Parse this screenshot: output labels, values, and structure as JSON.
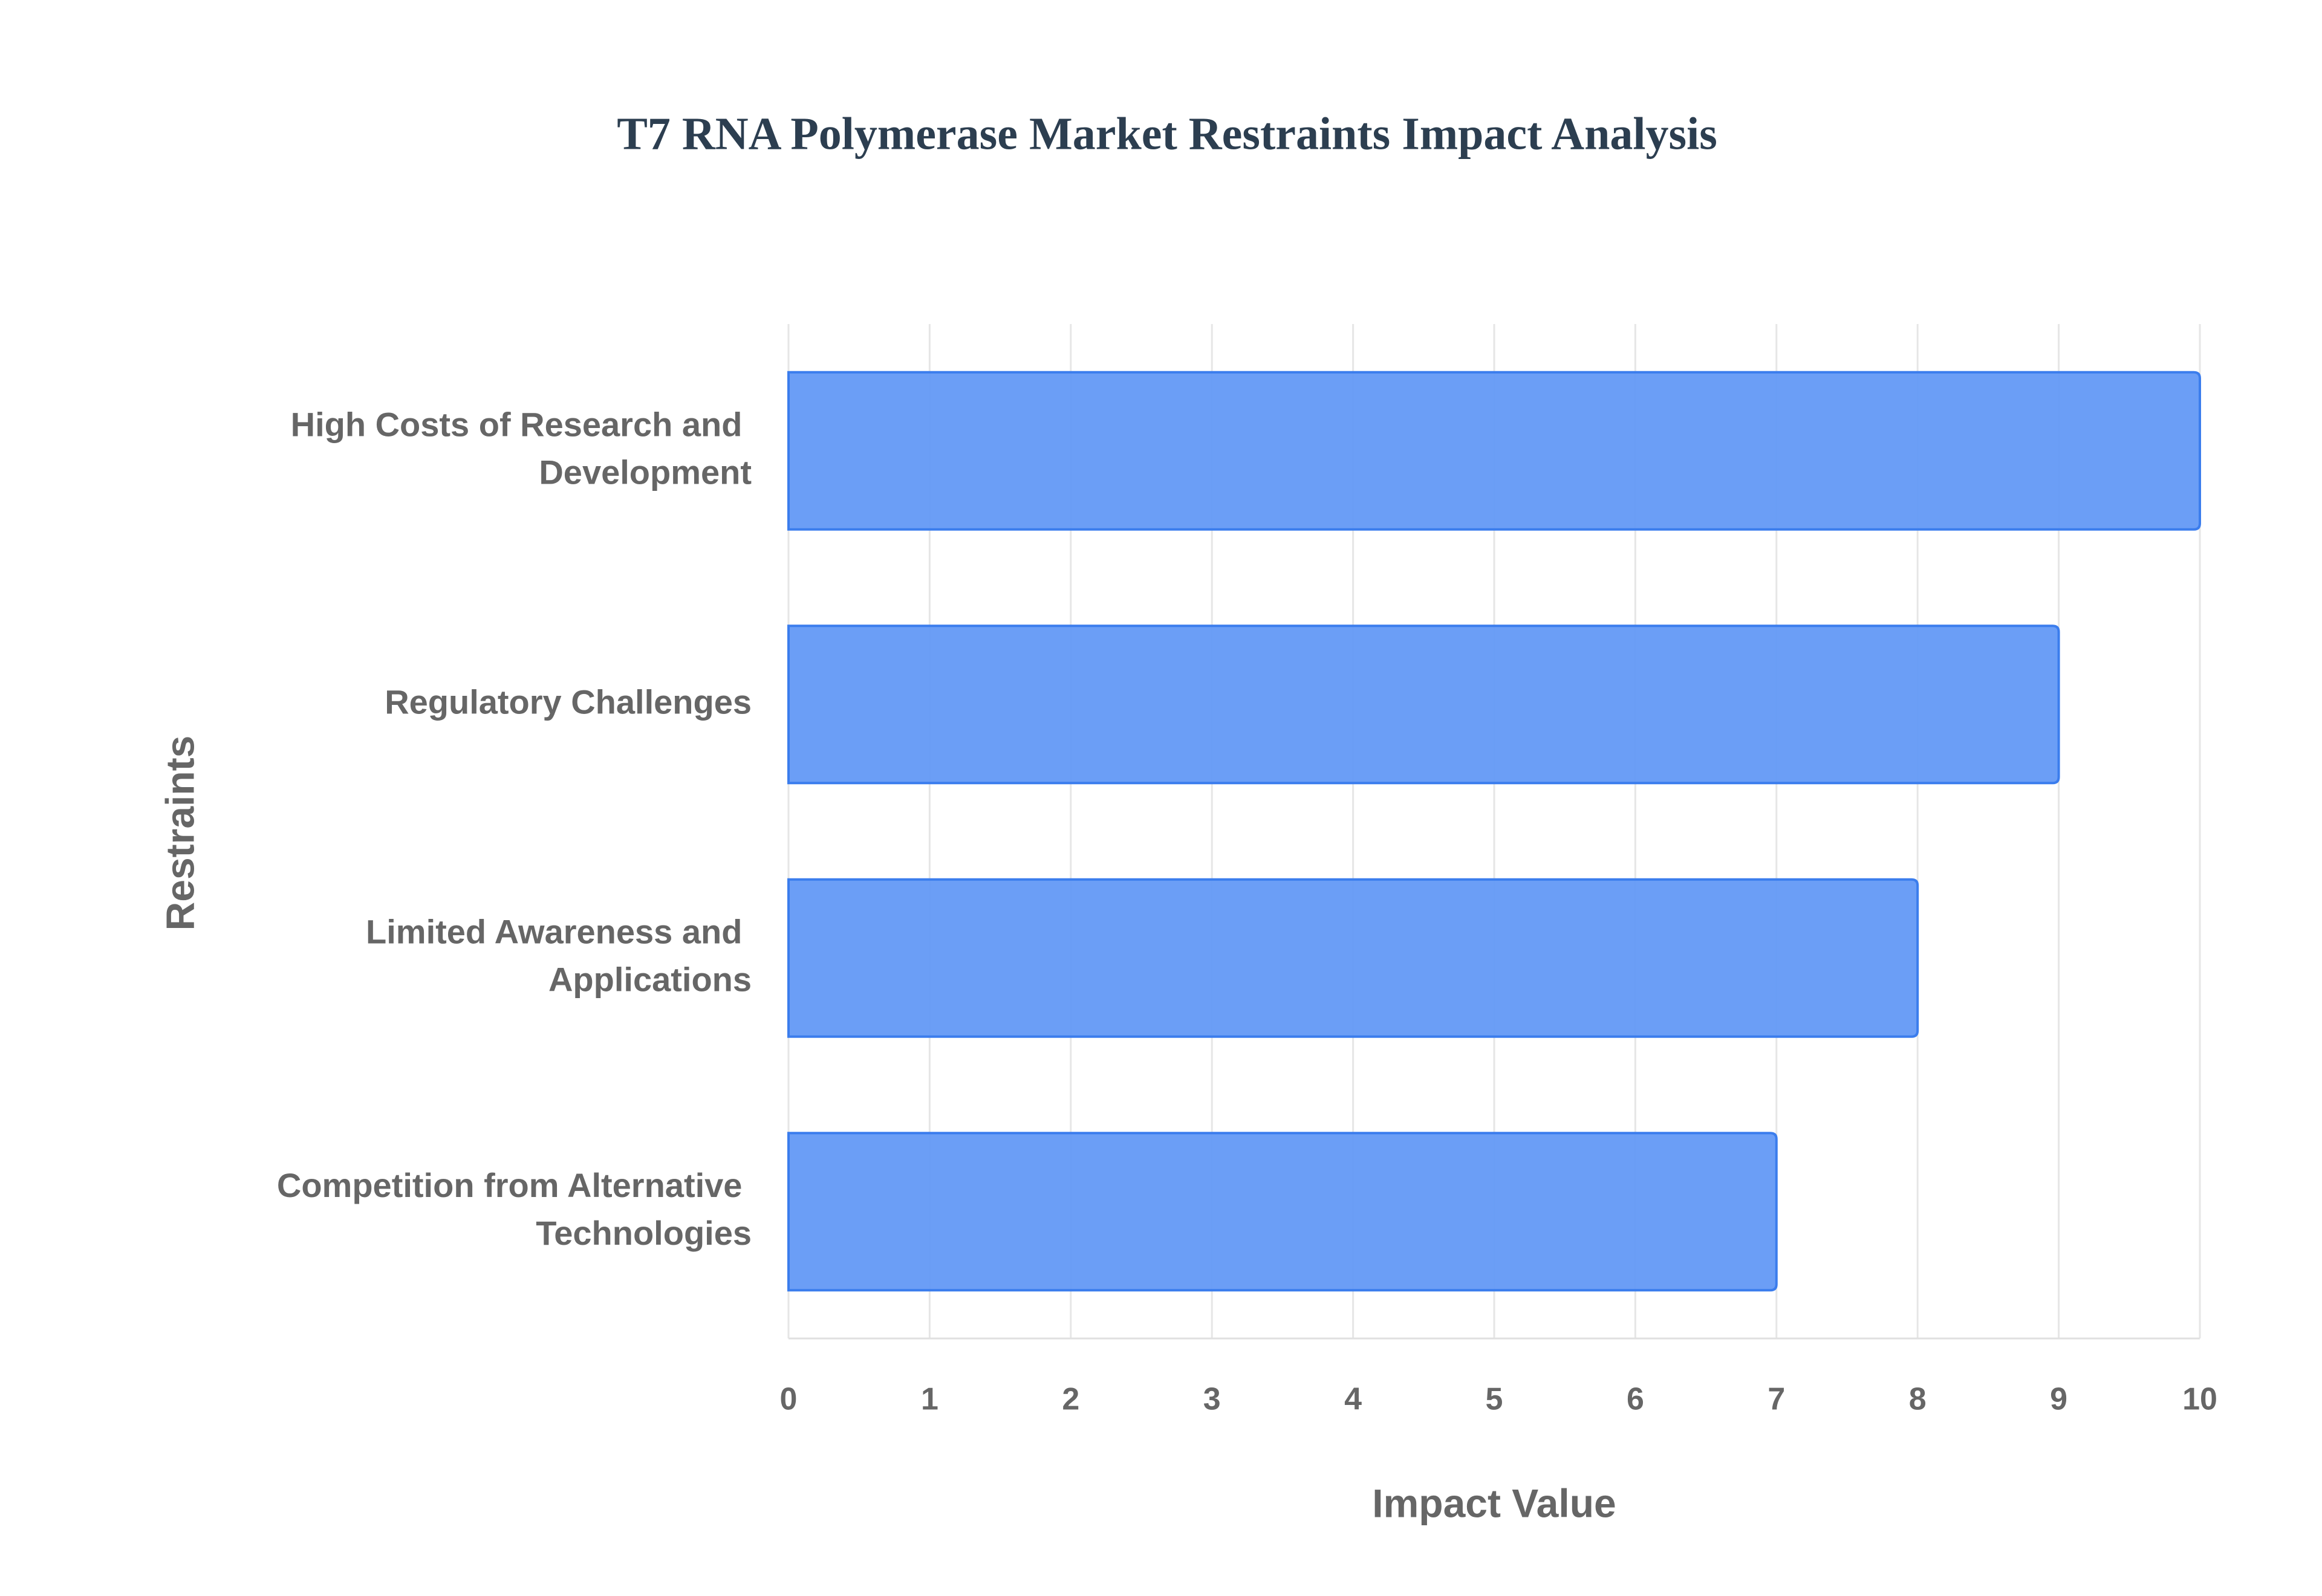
{
  "chart_data": {
    "type": "hbar",
    "title": "T7 RNA Polymerase Market Restraints Impact Analysis",
    "categories": [
      "High Costs of Research and Development",
      "Regulatory Challenges",
      "Limited Awareness and Applications",
      "Competition from Alternative Technologies"
    ],
    "values": [
      10,
      9,
      8,
      7
    ],
    "color": "#6399f5",
    "x_label": "Impact Value",
    "y_label": "Restraints",
    "xlim": [
      0,
      10
    ],
    "xticks": [
      0,
      1,
      2,
      3,
      4,
      5,
      6,
      7,
      8,
      9,
      10
    ],
    "grid": true
  }
}
